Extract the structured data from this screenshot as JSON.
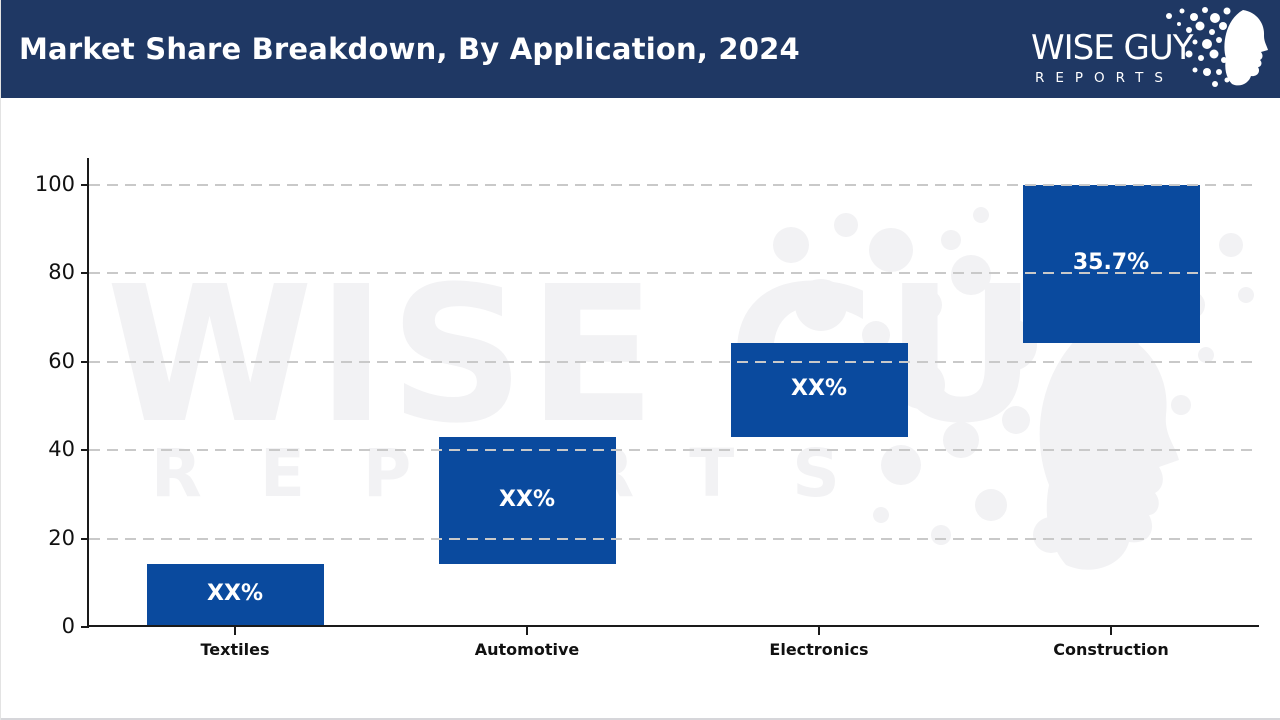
{
  "header": {
    "title": "Market Share Breakdown, By Application, 2024",
    "logo": {
      "wordmark": "WISE GUY",
      "sub": "REPORTS"
    }
  },
  "watermark": {
    "wordmark": "WISE GUY",
    "sub": "REPORTS"
  },
  "chart_data": {
    "type": "bar",
    "variant": "waterfall",
    "title": "Market Share Breakdown, By Application, 2024",
    "categories": [
      "Textiles",
      "Automotive",
      "Electronics",
      "Construction"
    ],
    "segments": [
      {
        "category": "Textiles",
        "start": 0,
        "end": 14.3,
        "label": "XX%"
      },
      {
        "category": "Automotive",
        "start": 14.3,
        "end": 42.9,
        "label": "XX%"
      },
      {
        "category": "Electronics",
        "start": 42.9,
        "end": 64.3,
        "label": "XX%"
      },
      {
        "category": "Construction",
        "start": 64.3,
        "end": 100,
        "label": "35.7%"
      }
    ],
    "ylim": [
      0,
      100
    ],
    "yticks": [
      0,
      20,
      40,
      60,
      80,
      100
    ],
    "grid": "horizontal-dashed",
    "legend": "none",
    "xlabel": "",
    "ylabel": ""
  },
  "colors": {
    "header_bg": "#1f3864",
    "title_text": "#ffffff",
    "bar": "#0a4a9e",
    "bar_label": "#ffffff",
    "grid": "#c9c9c9",
    "axis": "#1a1a1a",
    "tick_text": "#111111",
    "watermark": "#f2f2f4"
  }
}
